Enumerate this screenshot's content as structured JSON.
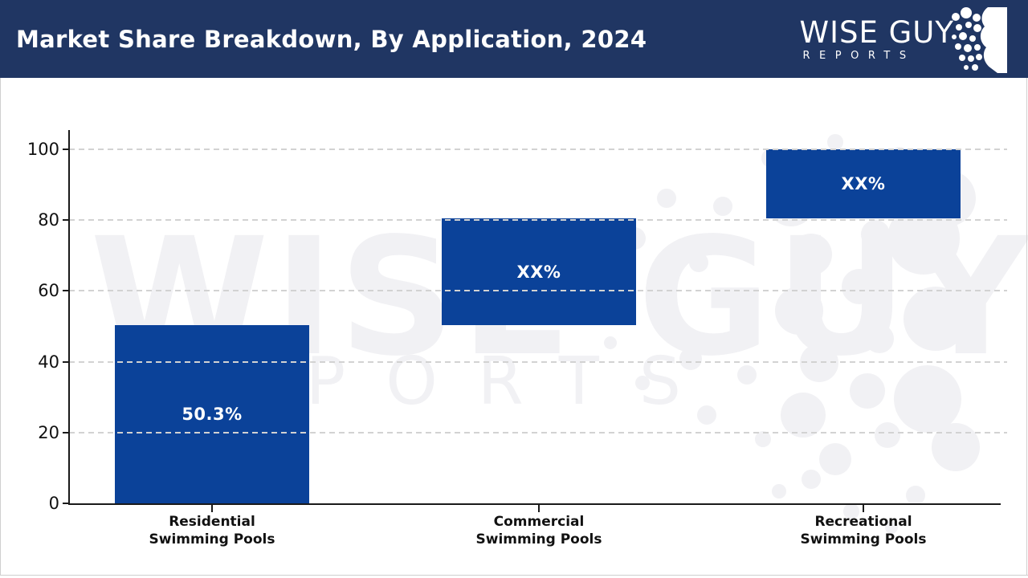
{
  "header": {
    "title": "Market Share Breakdown, By Application, 2024",
    "bg_color": "#203663",
    "logo": {
      "line1": "WISE GUY",
      "line2": "REPORTS"
    }
  },
  "watermark": {
    "line1": "WISE GUY",
    "line2": "REPORTS"
  },
  "chart_data": {
    "type": "bar",
    "subtype": "floating-waterfall",
    "title": "Market Share Breakdown, By Application, 2024",
    "categories": [
      "Residential Swimming Pools",
      "Commercial Swimming Pools",
      "Recreational Swimming Pools"
    ],
    "segments": [
      {
        "category": "Residential Swimming Pools",
        "start": 0,
        "end": 50.3,
        "label": "50.3%"
      },
      {
        "category": "Commercial Swimming Pools",
        "start": 50.3,
        "end": 80.5,
        "label": "XX%"
      },
      {
        "category": "Recreational Swimming Pools",
        "start": 80.5,
        "end": 100,
        "label": "XX%"
      }
    ],
    "xlabel": "",
    "ylabel": "",
    "ylim": [
      0,
      100
    ],
    "yticks": [
      0,
      20,
      40,
      60,
      80,
      100
    ],
    "grid": "horizontal-dashed",
    "legend": "none",
    "bar_color": "#0b4299",
    "bar_label_color": "#ffffff",
    "axis_color": "#1a1a1a",
    "grid_color": "#d2d2d2"
  }
}
